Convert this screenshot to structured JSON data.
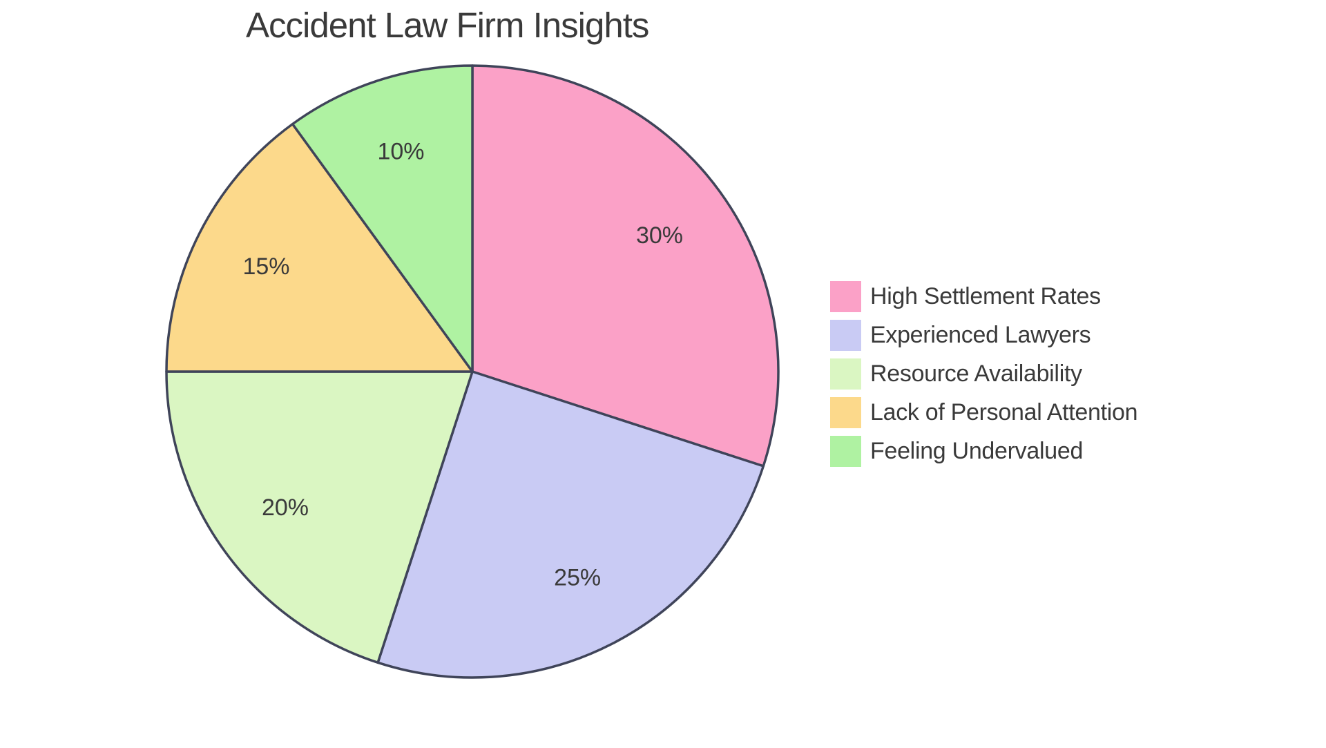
{
  "chart_data": {
    "type": "pie",
    "title": "Accident Law Firm Insights",
    "labels": [
      "High Settlement Rates",
      "Experienced Lawyers",
      "Resource Availability",
      "Lack of Personal Attention",
      "Feeling Undervalued"
    ],
    "values": [
      30,
      25,
      20,
      15,
      10
    ],
    "value_labels": [
      "30%",
      "25%",
      "20%",
      "15%",
      "10%"
    ],
    "colors": [
      "#FBA1C7",
      "#C9CBF4",
      "#DAF6C2",
      "#FCD98B",
      "#AFF2A2"
    ],
    "slice_border_color": "#3F4459",
    "text_color": "#3A3A3A",
    "background_color": "#FFFFFF",
    "start_angle_deg": -90,
    "direction": "clockwise",
    "legend_position": "right",
    "labels_inside": true
  }
}
